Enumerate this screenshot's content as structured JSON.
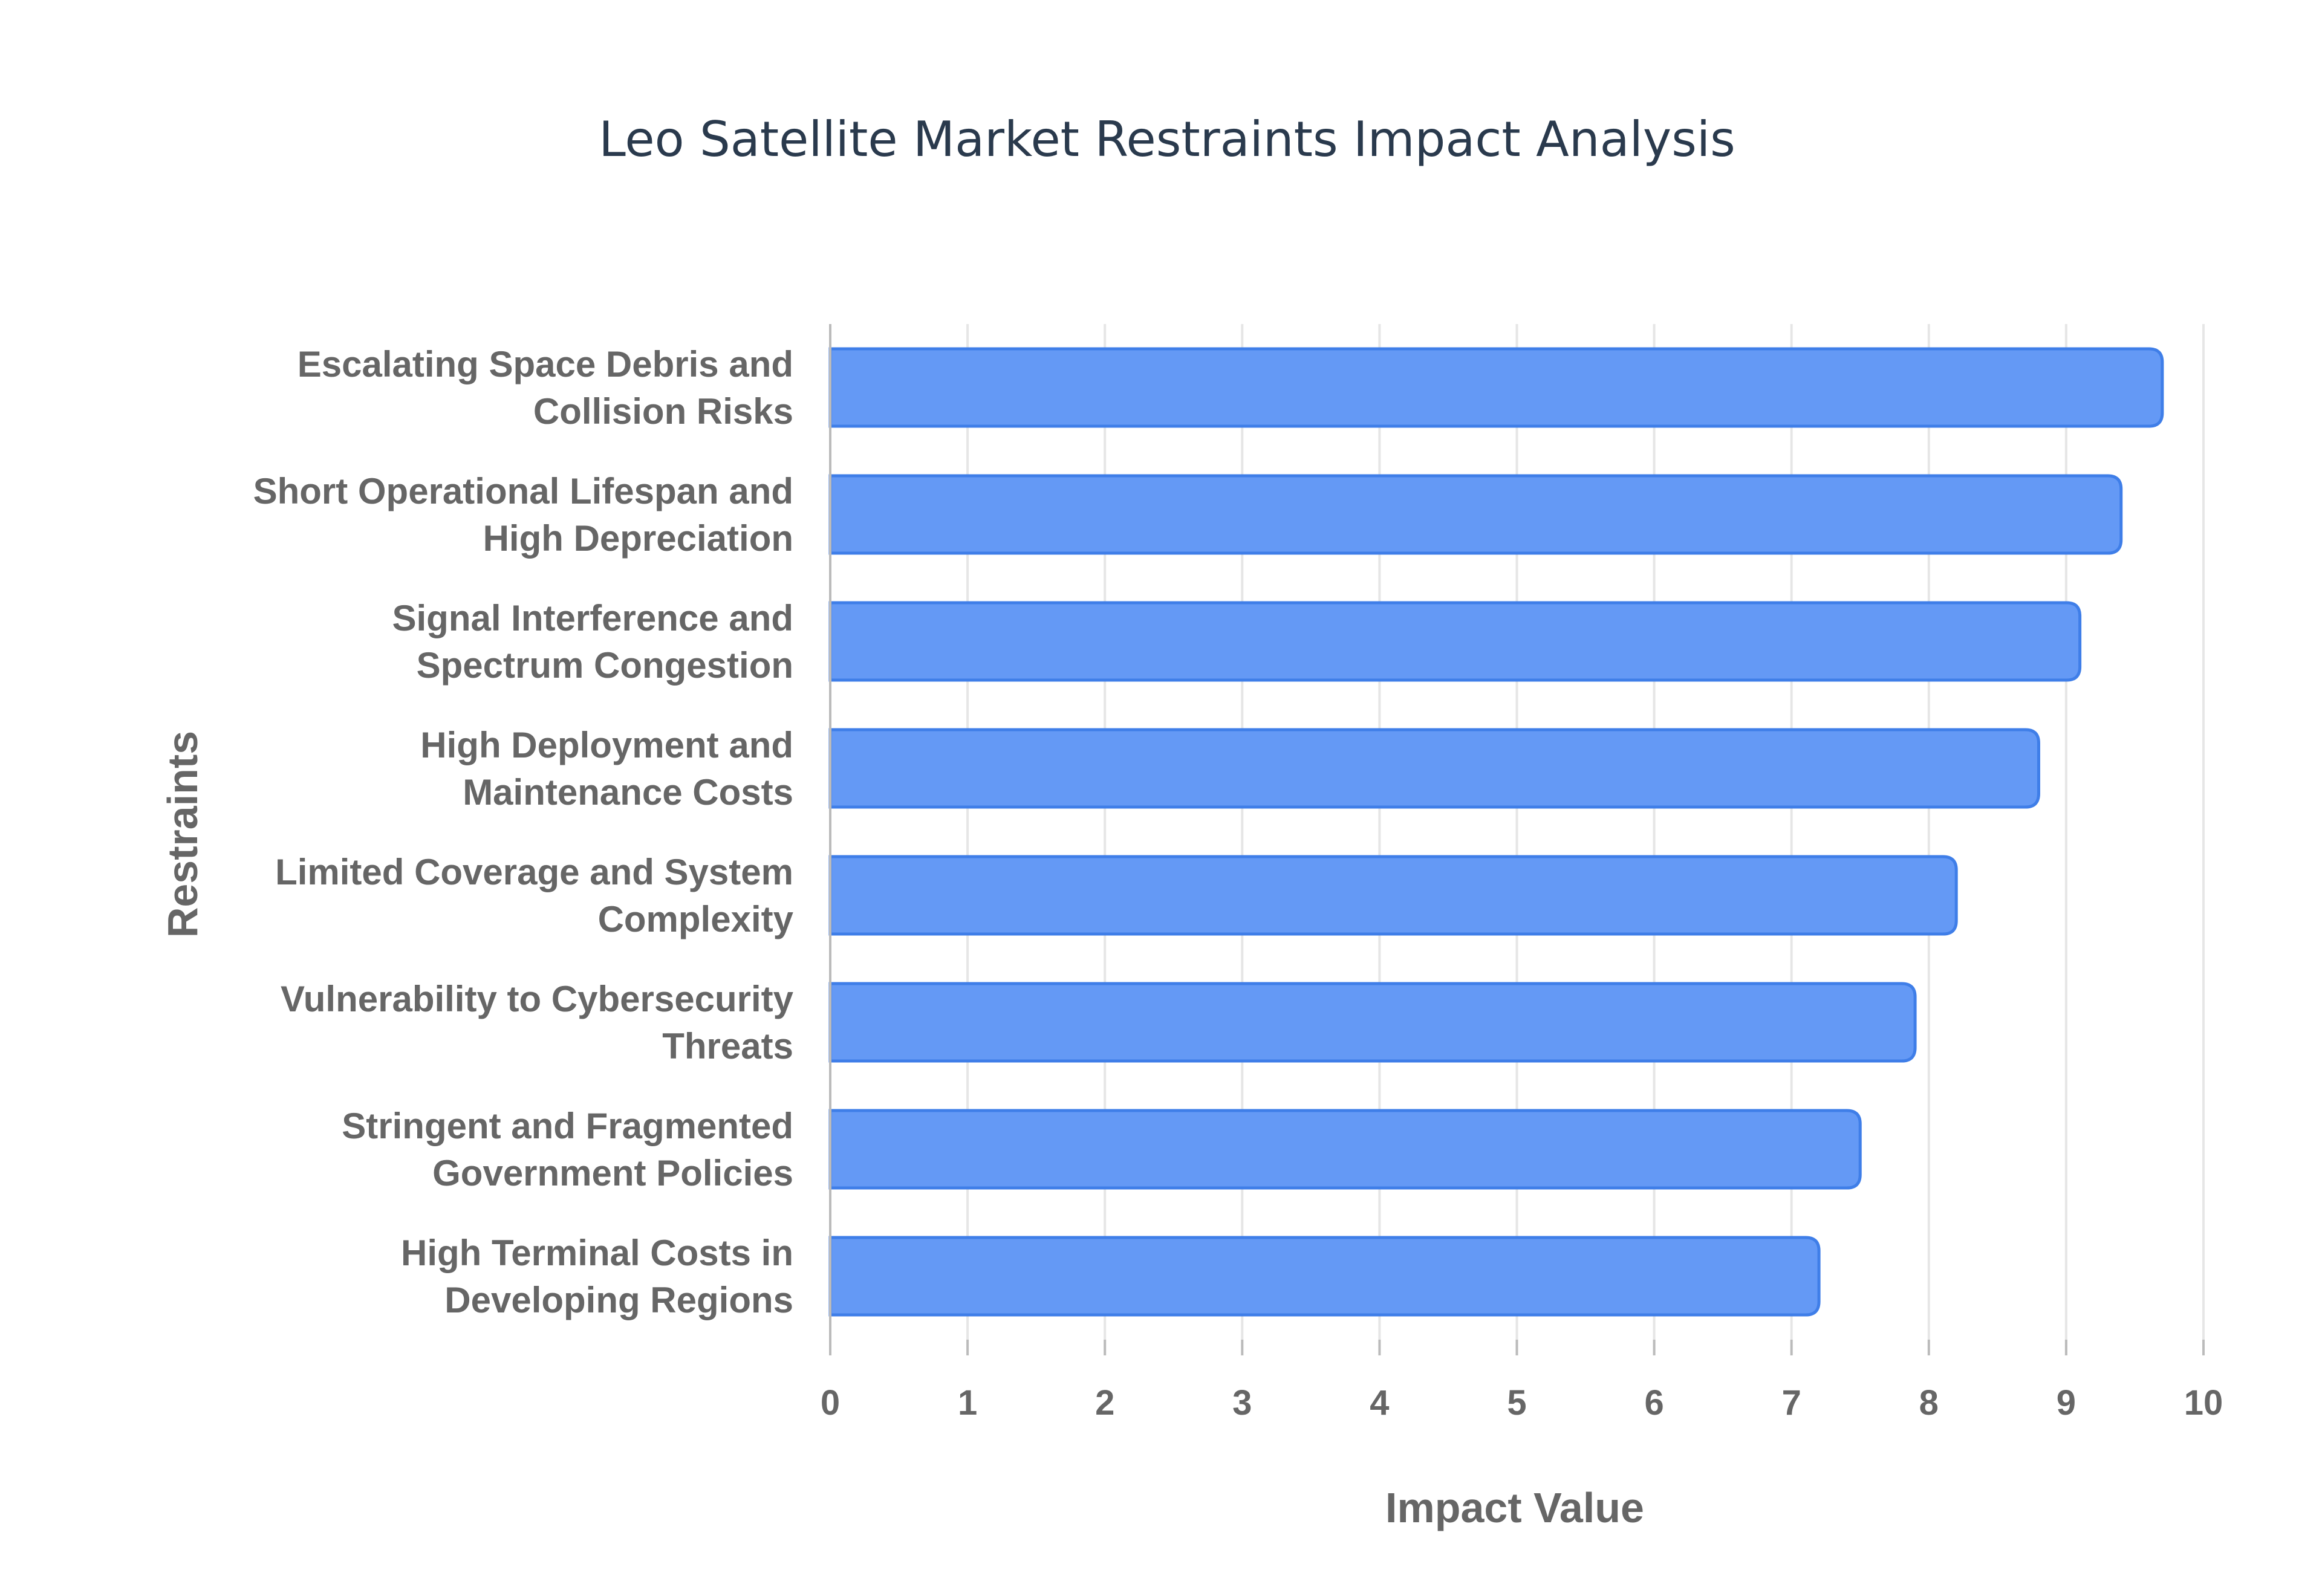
{
  "chart_data": {
    "type": "bar",
    "orientation": "horizontal",
    "title": "Leo Satellite Market Restraints Impact Analysis",
    "xlabel": "Impact Value",
    "ylabel": "Restraints",
    "xlim": [
      0,
      10
    ],
    "xticks": [
      "0",
      "1",
      "2",
      "3",
      "4",
      "5",
      "6",
      "7",
      "8",
      "9",
      "10"
    ],
    "grid": true,
    "bar_color": "#6499f5",
    "bar_border_color": "#3f7ee8",
    "categories": [
      [
        "Escalating Space Debris and",
        "Collision Risks"
      ],
      [
        "Short Operational Lifespan and",
        "High Depreciation"
      ],
      [
        "Signal Interference and",
        "Spectrum Congestion"
      ],
      [
        "High Deployment and",
        "Maintenance Costs"
      ],
      [
        "Limited Coverage and System",
        "Complexity"
      ],
      [
        "Vulnerability to Cybersecurity",
        "Threats"
      ],
      [
        "Stringent and Fragmented",
        "Government Policies"
      ],
      [
        "High Terminal Costs in",
        "Developing Regions"
      ]
    ],
    "values": [
      9.7,
      9.4,
      9.1,
      8.8,
      8.2,
      7.9,
      7.5,
      7.2
    ]
  }
}
